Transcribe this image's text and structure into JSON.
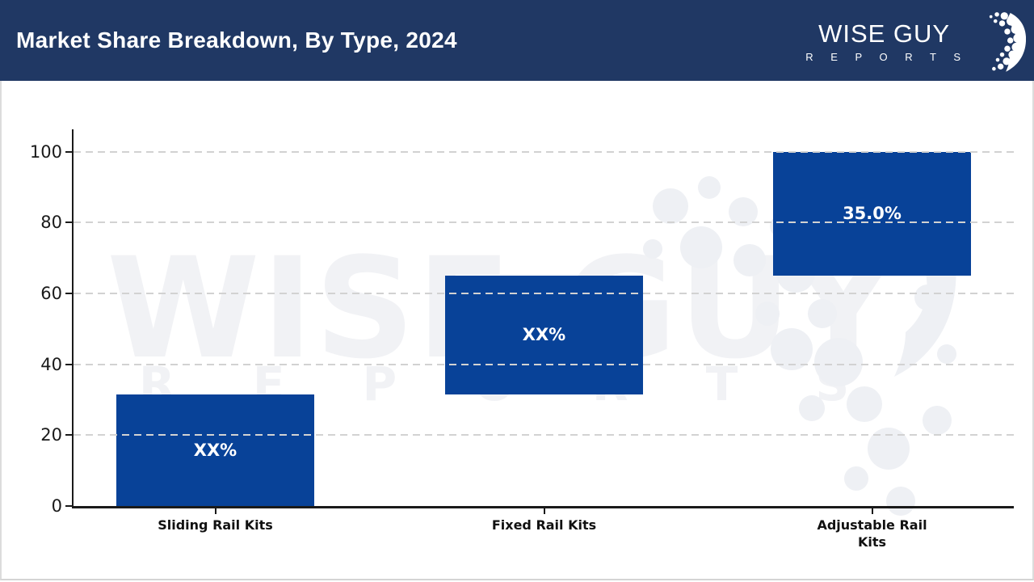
{
  "header": {
    "title": "Market Share Breakdown, By Type, 2024",
    "logo": {
      "line1": "WISE GUY",
      "line2": "REPORTS"
    }
  },
  "watermark": {
    "line1": "WISE GUY",
    "line2": "REPORTS"
  },
  "colors": {
    "header_bg": "#203864",
    "bar": "#084298",
    "gridline": "#d2d2d2",
    "axis": "#1a1a1a",
    "bar_label_text": "#ffffff",
    "watermark": "#f1f2f5"
  },
  "chart_data": {
    "type": "bar",
    "subtype": "waterfall-floating-bars",
    "title": "Market Share Breakdown, By Type, 2024",
    "categories": [
      "Sliding Rail Kits",
      "Fixed Rail Kits",
      "Adjustable Rail Kits"
    ],
    "category_display": [
      [
        "Sliding Rail Kits"
      ],
      [
        "Fixed Rail Kits"
      ],
      [
        "Adjustable Rail",
        "Kits"
      ]
    ],
    "bars": [
      {
        "category": "Sliding Rail Kits",
        "start": 0,
        "end": 31.5,
        "value": 31.5,
        "label": "XX%"
      },
      {
        "category": "Fixed Rail Kits",
        "start": 31.5,
        "end": 65,
        "value": 33.5,
        "label": "XX%"
      },
      {
        "category": "Adjustable Rail Kits",
        "start": 65,
        "end": 100,
        "value": 35.0,
        "label": "35.0%"
      }
    ],
    "xlabel": "",
    "ylabel": "",
    "yticks": [
      0,
      20,
      40,
      60,
      80,
      100
    ],
    "ylim": [
      0,
      106
    ],
    "grid": "horizontal dashed, drawn above bars",
    "legend": "none",
    "bar_color": "#084298"
  }
}
